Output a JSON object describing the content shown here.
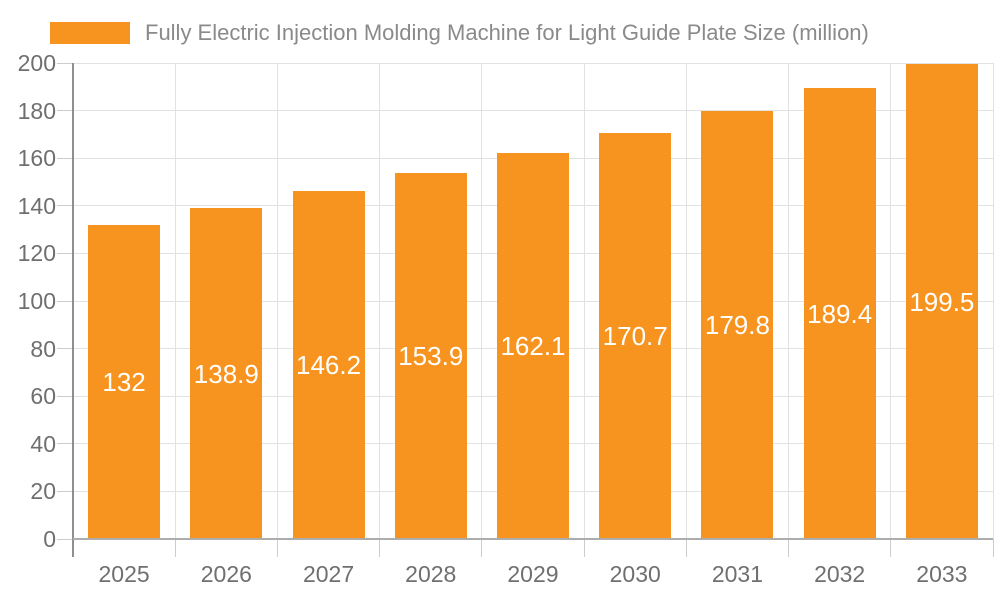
{
  "chart_data": {
    "type": "bar",
    "title": "",
    "legend": "Fully Electric Injection Molding Machine for Light Guide Plate Size (million)",
    "legend_position": "top-left",
    "categories": [
      "2025",
      "2026",
      "2027",
      "2028",
      "2029",
      "2030",
      "2031",
      "2032",
      "2033"
    ],
    "values": [
      132,
      138.9,
      146.2,
      153.9,
      162.1,
      170.7,
      179.8,
      189.4,
      199.5
    ],
    "value_labels": [
      "132",
      "138.9",
      "146.2",
      "153.9",
      "162.1",
      "170.7",
      "179.8",
      "189.4",
      "199.5"
    ],
    "xlabel": "",
    "ylabel": "",
    "ylim": [
      0,
      200
    ],
    "yticks": [
      0,
      20,
      40,
      60,
      80,
      100,
      120,
      140,
      160,
      180,
      200
    ],
    "grid": true,
    "colors": {
      "bar": "#F7941F",
      "bar_value_text": "#FFFFFF",
      "axis_text": "#6F6F6F",
      "legend_text": "#8A8A8A",
      "gridline": "#E2E2E2",
      "y_axis_line": "#8F8F8F",
      "x_axis_line": "#ADADAD",
      "tick": "#CCCCCC"
    }
  }
}
